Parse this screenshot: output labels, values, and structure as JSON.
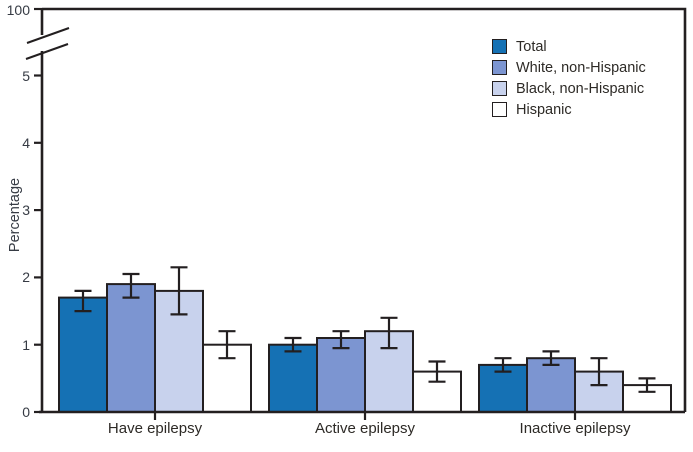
{
  "chart_data": {
    "type": "bar",
    "title": "",
    "ylabel": "Percentage",
    "categories": [
      "Have epilepsy",
      "Active epilepsy",
      "Inactive epilepsy"
    ],
    "series": [
      {
        "name": "Total",
        "color": "#1571b4",
        "values": [
          1.7,
          1.0,
          0.7
        ],
        "ci_low": [
          1.5,
          0.9,
          0.6
        ],
        "ci_high": [
          1.8,
          1.1,
          0.8
        ]
      },
      {
        "name": "White, non-Hispanic",
        "color": "#7c95d1",
        "values": [
          1.9,
          1.1,
          0.8
        ],
        "ci_low": [
          1.7,
          0.95,
          0.7
        ],
        "ci_high": [
          2.05,
          1.2,
          0.9
        ]
      },
      {
        "name": "Black, non-Hispanic",
        "color": "#c8d2ed",
        "values": [
          1.8,
          1.2,
          0.6
        ],
        "ci_low": [
          1.45,
          0.95,
          0.4
        ],
        "ci_high": [
          2.15,
          1.4,
          0.8
        ]
      },
      {
        "name": "Hispanic",
        "color": "#ffffff",
        "values": [
          1.0,
          0.6,
          0.4
        ],
        "ci_low": [
          0.8,
          0.45,
          0.3
        ],
        "ci_high": [
          1.2,
          0.75,
          0.5
        ]
      }
    ],
    "y_axis": {
      "ticks": [
        0,
        1,
        2,
        3,
        4,
        5
      ],
      "break_label": "100",
      "axis_break": true,
      "max_display": 5
    },
    "grid": false,
    "legend_position": "top-right",
    "axis_color": "#231f20"
  }
}
